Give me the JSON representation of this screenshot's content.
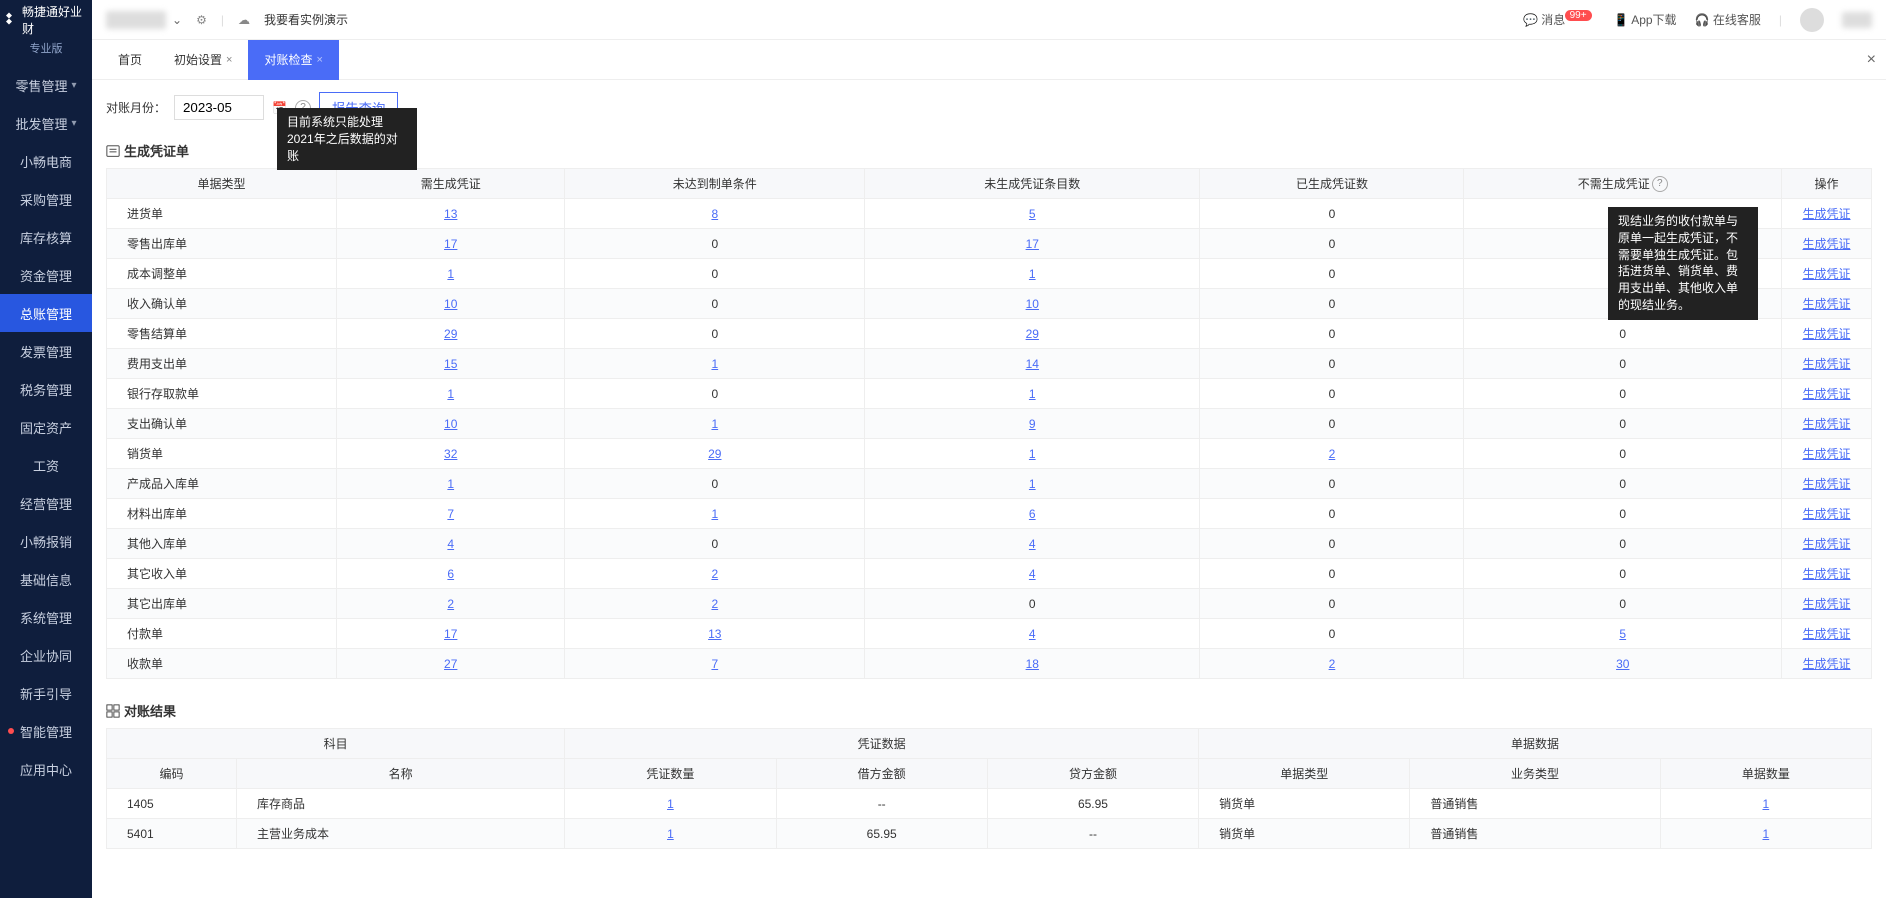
{
  "brand": {
    "name": "畅捷通好业财",
    "sub": "专业版"
  },
  "sidebar": [
    {
      "label": "零售管理",
      "chev": true
    },
    {
      "label": "批发管理",
      "chev": true
    },
    {
      "label": "小畅电商"
    },
    {
      "label": "采购管理"
    },
    {
      "label": "库存核算"
    },
    {
      "label": "资金管理"
    },
    {
      "label": "总账管理",
      "active": true
    },
    {
      "label": "发票管理"
    },
    {
      "label": "税务管理"
    },
    {
      "label": "固定资产"
    },
    {
      "label": "工资"
    },
    {
      "label": "经营管理"
    },
    {
      "label": "小畅报销"
    },
    {
      "label": "基础信息"
    },
    {
      "label": "系统管理"
    },
    {
      "label": "企业协同"
    },
    {
      "label": "新手引导"
    },
    {
      "label": "智能管理",
      "dot": true
    },
    {
      "label": "应用中心"
    }
  ],
  "topbar": {
    "demo": "我要看实例演示",
    "msg": "消息",
    "msg_badge": "99+",
    "app": "App下载",
    "service": "在线客服"
  },
  "tabs": [
    {
      "label": "首页"
    },
    {
      "label": "初始设置",
      "closable": true
    },
    {
      "label": "对账检查",
      "closable": true,
      "active": true
    }
  ],
  "toolbar": {
    "month_label": "对账月份：",
    "month_value": "2023-05",
    "report_btn": "报告查询",
    "tip1": "目前系统只能处理2021年之后数据的对账",
    "tip2": "现结业务的收付款单与原单一起生成凭证，不需要单独生成凭证。包括进货单、销货单、费用支出单、其他收入单的现结业务。"
  },
  "voucher_section": {
    "title": "生成凭证单",
    "columns": [
      "单据类型",
      "需生成凭证",
      "未达到制单条件",
      "未生成凭证条目数",
      "已生成凭证数",
      "不需生成凭证",
      "操作"
    ],
    "action_label": "生成凭证",
    "rows": [
      {
        "type": "进货单",
        "need": "13",
        "nc": "8",
        "ng": "5",
        "done": "0",
        "no": "",
        "need_l": true,
        "nc_l": true,
        "ng_l": true
      },
      {
        "type": "零售出库单",
        "need": "17",
        "nc": "0",
        "ng": "17",
        "done": "0",
        "no": "",
        "need_l": true,
        "ng_l": true
      },
      {
        "type": "成本调整单",
        "need": "1",
        "nc": "0",
        "ng": "1",
        "done": "0",
        "no": "",
        "need_l": true,
        "ng_l": true
      },
      {
        "type": "收入确认单",
        "need": "10",
        "nc": "0",
        "ng": "10",
        "done": "0",
        "no": "",
        "need_l": true,
        "ng_l": true
      },
      {
        "type": "零售结算单",
        "need": "29",
        "nc": "0",
        "ng": "29",
        "done": "0",
        "no": "0",
        "need_l": true,
        "ng_l": true
      },
      {
        "type": "费用支出单",
        "need": "15",
        "nc": "1",
        "ng": "14",
        "done": "0",
        "no": "0",
        "need_l": true,
        "nc_l": true,
        "ng_l": true
      },
      {
        "type": "银行存取款单",
        "need": "1",
        "nc": "0",
        "ng": "1",
        "done": "0",
        "no": "0",
        "need_l": true,
        "ng_l": true
      },
      {
        "type": "支出确认单",
        "need": "10",
        "nc": "1",
        "ng": "9",
        "done": "0",
        "no": "0",
        "need_l": true,
        "nc_l": true,
        "ng_l": true
      },
      {
        "type": "销货单",
        "need": "32",
        "nc": "29",
        "ng": "1",
        "done": "2",
        "no": "0",
        "need_l": true,
        "nc_l": true,
        "ng_l": true,
        "done_l": true
      },
      {
        "type": "产成品入库单",
        "need": "1",
        "nc": "0",
        "ng": "1",
        "done": "0",
        "no": "0",
        "need_l": true,
        "ng_l": true
      },
      {
        "type": "材料出库单",
        "need": "7",
        "nc": "1",
        "ng": "6",
        "done": "0",
        "no": "0",
        "need_l": true,
        "nc_l": true,
        "ng_l": true
      },
      {
        "type": "其他入库单",
        "need": "4",
        "nc": "0",
        "ng": "4",
        "done": "0",
        "no": "0",
        "need_l": true,
        "ng_l": true
      },
      {
        "type": "其它收入单",
        "need": "6",
        "nc": "2",
        "ng": "4",
        "done": "0",
        "no": "0",
        "need_l": true,
        "nc_l": true,
        "ng_l": true
      },
      {
        "type": "其它出库单",
        "need": "2",
        "nc": "2",
        "ng": "0",
        "done": "0",
        "no": "0",
        "need_l": true,
        "nc_l": true
      },
      {
        "type": "付款单",
        "need": "17",
        "nc": "13",
        "ng": "4",
        "done": "0",
        "no": "5",
        "need_l": true,
        "nc_l": true,
        "ng_l": true,
        "no_l": true
      },
      {
        "type": "收款单",
        "need": "27",
        "nc": "7",
        "ng": "18",
        "done": "2",
        "no": "30",
        "need_l": true,
        "nc_l": true,
        "ng_l": true,
        "done_l": true,
        "no_l": true
      }
    ]
  },
  "result_section": {
    "title": "对账结果",
    "group_headers": [
      "科目",
      "凭证数据",
      "单据数据"
    ],
    "columns": [
      "编码",
      "名称",
      "凭证数量",
      "借方金额",
      "贷方金额",
      "单据类型",
      "业务类型",
      "单据数量"
    ],
    "rows": [
      {
        "code": "1405",
        "name": "库存商品",
        "vq": "1",
        "debit": "--",
        "credit": "65.95",
        "dtype": "销货单",
        "btype": "普通销售",
        "dq": "1",
        "vq_l": true,
        "dq_l": true
      },
      {
        "code": "5401",
        "name": "主营业务成本",
        "vq": "1",
        "debit": "65.95",
        "credit": "--",
        "dtype": "销货单",
        "btype": "普通销售",
        "dq": "1",
        "vq_l": true,
        "dq_l": true
      }
    ]
  },
  "colors": {
    "primary": "#4a6cf7",
    "sidebar_bg": "#0f1e3d",
    "active_bg": "#2857e0"
  }
}
